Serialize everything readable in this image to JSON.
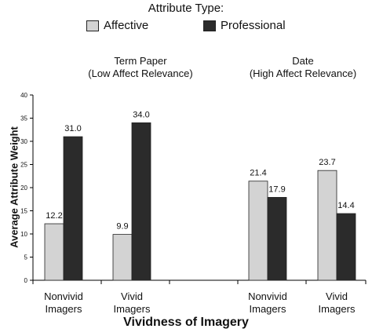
{
  "legend": {
    "title": "Attribute Type:",
    "items": [
      {
        "label": "Affective",
        "color": "#d3d3d3"
      },
      {
        "label": "Professional",
        "color": "#2b2b2b"
      }
    ]
  },
  "chart_data": {
    "type": "bar",
    "ylabel": "Average Attribute Weight",
    "xlabel": "Vividness of Imagery",
    "ylim": [
      0,
      40
    ],
    "yticks": [
      0,
      5,
      10,
      15,
      20,
      25,
      30,
      35,
      40
    ],
    "grid": false,
    "legend_position": "top",
    "groups": [
      {
        "title_line1": "Term Paper",
        "title_line2": "(Low Affect Relevance)",
        "categories": [
          {
            "label_line1": "Nonvivid",
            "label_line2": "Imagers",
            "values": [
              12.2,
              31.0
            ],
            "labels": [
              "12.2",
              "31.0"
            ]
          },
          {
            "label_line1": "Vivid",
            "label_line2": "Imagers",
            "values": [
              9.9,
              34.0
            ],
            "labels": [
              "9.9",
              "34.0"
            ]
          }
        ]
      },
      {
        "title_line1": "Date",
        "title_line2": "(High Affect Relevance)",
        "categories": [
          {
            "label_line1": "Nonvivid",
            "label_line2": "Imagers",
            "values": [
              21.4,
              17.9
            ],
            "labels": [
              "21.4",
              "17.9"
            ]
          },
          {
            "label_line1": "Vivid",
            "label_line2": "Imagers",
            "values": [
              23.7,
              14.4
            ],
            "labels": [
              "23.7",
              "14.4"
            ]
          }
        ]
      }
    ],
    "series": [
      {
        "name": "Affective",
        "color": "#d3d3d3"
      },
      {
        "name": "Professional",
        "color": "#2b2b2b"
      }
    ]
  }
}
